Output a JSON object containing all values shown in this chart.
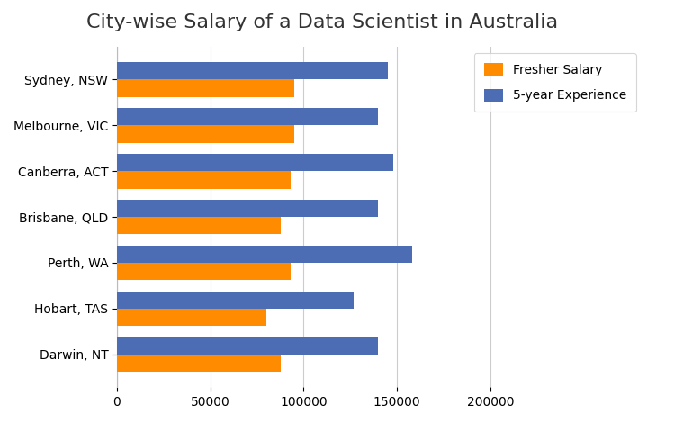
{
  "title": "City-wise Salary of a Data Scientist in Australia",
  "cities": [
    "Sydney, NSW",
    "Melbourne, VIC",
    "Canberra, ACT",
    "Brisbane, QLD",
    "Perth, WA",
    "Hobart, TAS",
    "Darwin, NT"
  ],
  "fresher_salary": [
    95000,
    95000,
    93000,
    88000,
    93000,
    80000,
    88000
  ],
  "experience_salary": [
    145000,
    140000,
    148000,
    140000,
    158000,
    127000,
    140000
  ],
  "fresher_color": "#FF8C00",
  "experience_color": "#4C6CB3",
  "legend_labels": [
    "Fresher Salary",
    "5-year Experience"
  ],
  "xlim": [
    0,
    220000
  ],
  "xticks": [
    0,
    50000,
    100000,
    150000,
    200000
  ],
  "background_color": "#FFFFFF",
  "grid_color": "#CCCCCC",
  "title_fontsize": 16,
  "bar_height": 0.38
}
